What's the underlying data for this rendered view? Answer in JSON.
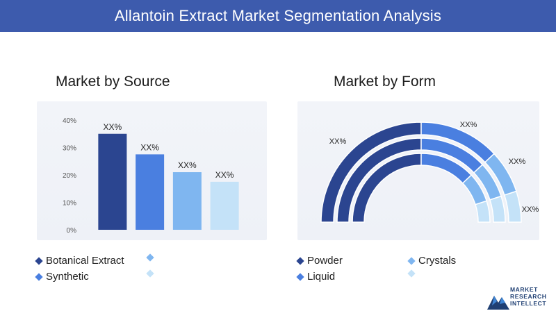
{
  "header": {
    "title": "Allantoin Extract Market Segmentation Analysis"
  },
  "sections": {
    "source_title": "Market by Source",
    "form_title": "Market by Form"
  },
  "chart_data": [
    {
      "type": "bar",
      "title": "Market by Source",
      "categories": [
        "Botanical Extract",
        "Synthetic",
        "",
        ""
      ],
      "values": [
        35,
        27.5,
        21,
        17.5
      ],
      "data_labels": [
        "XX%",
        "XX%",
        "XX%",
        "XX%"
      ],
      "ylim": [
        0,
        40
      ],
      "yticks": [
        "0%",
        "10%",
        "20%",
        "30%",
        "40%"
      ],
      "colors": [
        "#2b4590",
        "#4a7fe0",
        "#7fb6f0",
        "#c4e2f8"
      ],
      "grid": false
    },
    {
      "type": "pie",
      "title": "Market by Form",
      "categories": [
        "Powder",
        "Liquid",
        "Crystals",
        ""
      ],
      "values": [
        50,
        26,
        14,
        10
      ],
      "data_labels": [
        "XX%",
        "XX%",
        "XX%",
        "XX%"
      ],
      "colors": [
        "#2b4590",
        "#4a7fe0",
        "#7fb6f0",
        "#c4e2f8"
      ]
    }
  ],
  "legend_source": [
    {
      "label": "Botanical Extract",
      "color": "#2b4590"
    },
    {
      "label": "",
      "color": "#7fb6f0"
    },
    {
      "label": "Synthetic",
      "color": "#4a7fe0"
    },
    {
      "label": "",
      "color": "#c4e2f8"
    }
  ],
  "legend_form": [
    {
      "label": "Powder",
      "color": "#2b4590"
    },
    {
      "label": "Crystals",
      "color": "#7fb6f0"
    },
    {
      "label": "Liquid",
      "color": "#4a7fe0"
    },
    {
      "label": "",
      "color": "#c4e2f8"
    }
  ],
  "logo": {
    "line1": "MARKET",
    "line2": "RESEARCH",
    "line3": "INTELLECT"
  }
}
